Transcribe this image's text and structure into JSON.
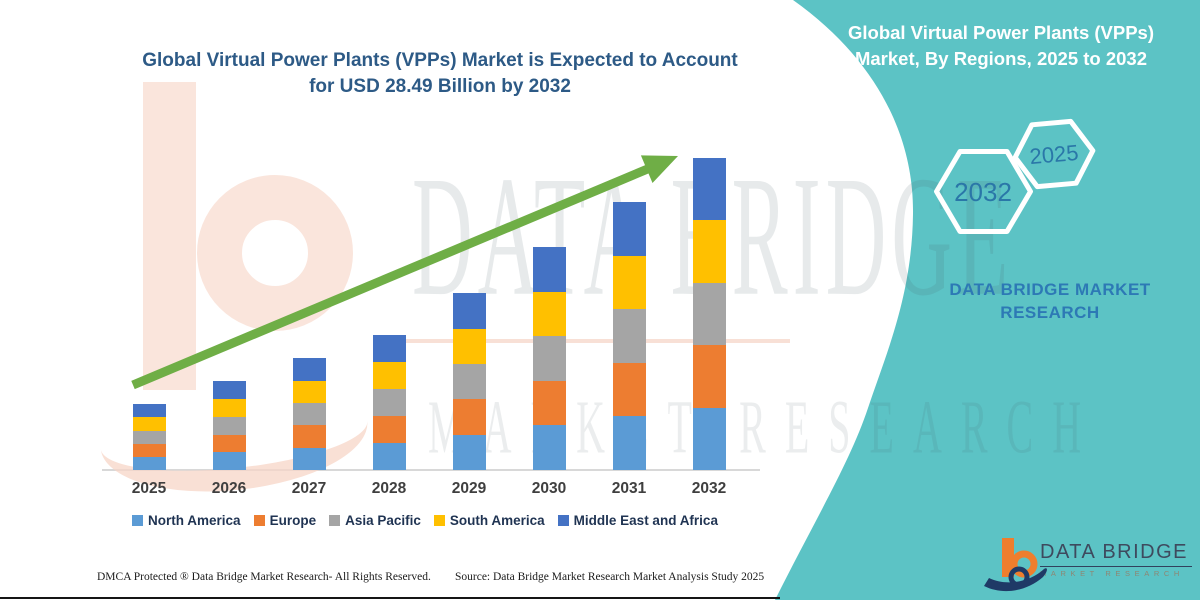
{
  "header": {
    "title_line1": "Global Virtual Power Plants (VPPs) Market is Expected to Account",
    "title_line2": "for USD 28.49 Billion by 2032"
  },
  "chart_data": {
    "type": "bar",
    "stacked": true,
    "title": "Global Virtual Power Plants (VPPs) Market is Expected to Account for USD 28.49 Billion by 2032",
    "unit": "USD Billion (values estimated from bar heights; 2032 total = 28.49)",
    "categories": [
      "2025",
      "2026",
      "2027",
      "2028",
      "2029",
      "2030",
      "2031",
      "2032"
    ],
    "series": [
      {
        "name": "North America",
        "color": "#5B9BD5",
        "values": [
          1.2,
          1.62,
          2.04,
          2.46,
          3.23,
          4.07,
          4.89,
          5.7
        ]
      },
      {
        "name": "Europe",
        "color": "#ED7D31",
        "values": [
          1.2,
          1.62,
          2.04,
          2.46,
          3.23,
          4.07,
          4.89,
          5.7
        ]
      },
      {
        "name": "Asia Pacific",
        "color": "#A5A5A5",
        "values": [
          1.2,
          1.62,
          2.04,
          2.46,
          3.23,
          4.07,
          4.89,
          5.7
        ]
      },
      {
        "name": "South America",
        "color": "#FFC000",
        "values": [
          1.2,
          1.62,
          2.04,
          2.46,
          3.23,
          4.07,
          4.89,
          5.7
        ]
      },
      {
        "name": "Middle East and Africa",
        "color": "#4472C4",
        "values": [
          1.2,
          1.62,
          2.04,
          2.46,
          3.23,
          4.07,
          4.89,
          5.7
        ]
      }
    ],
    "totals": [
      6.0,
      8.1,
      10.2,
      12.3,
      16.2,
      20.4,
      24.5,
      28.49
    ],
    "ylim": [
      0,
      28.5
    ],
    "grid": false,
    "axis_labels_shown": false,
    "legend_position": "bottom",
    "annotations": [
      "green upward growth trend arrow across bars"
    ],
    "trend_arrow_color": "#6fae46"
  },
  "side_panel": {
    "heading": "Global Virtual Power Plants (VPPs) Market, By Regions, 2025 to 2032",
    "hexagons": [
      {
        "label": "2032"
      },
      {
        "label": "2025"
      }
    ],
    "brand_text": "DATA BRIDGE MARKET RESEARCH",
    "accent_color": "#5cc3c5",
    "hexagon_label_color": "#2a77a8"
  },
  "logo": {
    "title": "DATA BRIDGE",
    "subtitle": "MARKET RESEARCH",
    "orange": "#ee7e2d",
    "navy": "#1f3a66"
  },
  "watermark": {
    "row1": "DATA BRIDGE",
    "row2": "MARKET RESEARCH"
  },
  "footer": {
    "dmca": "DMCA Protected ® Data Bridge Market Research-  All Rights Reserved.",
    "source": "Source: Data Bridge Market Research  Market Analysis Study 2025"
  }
}
